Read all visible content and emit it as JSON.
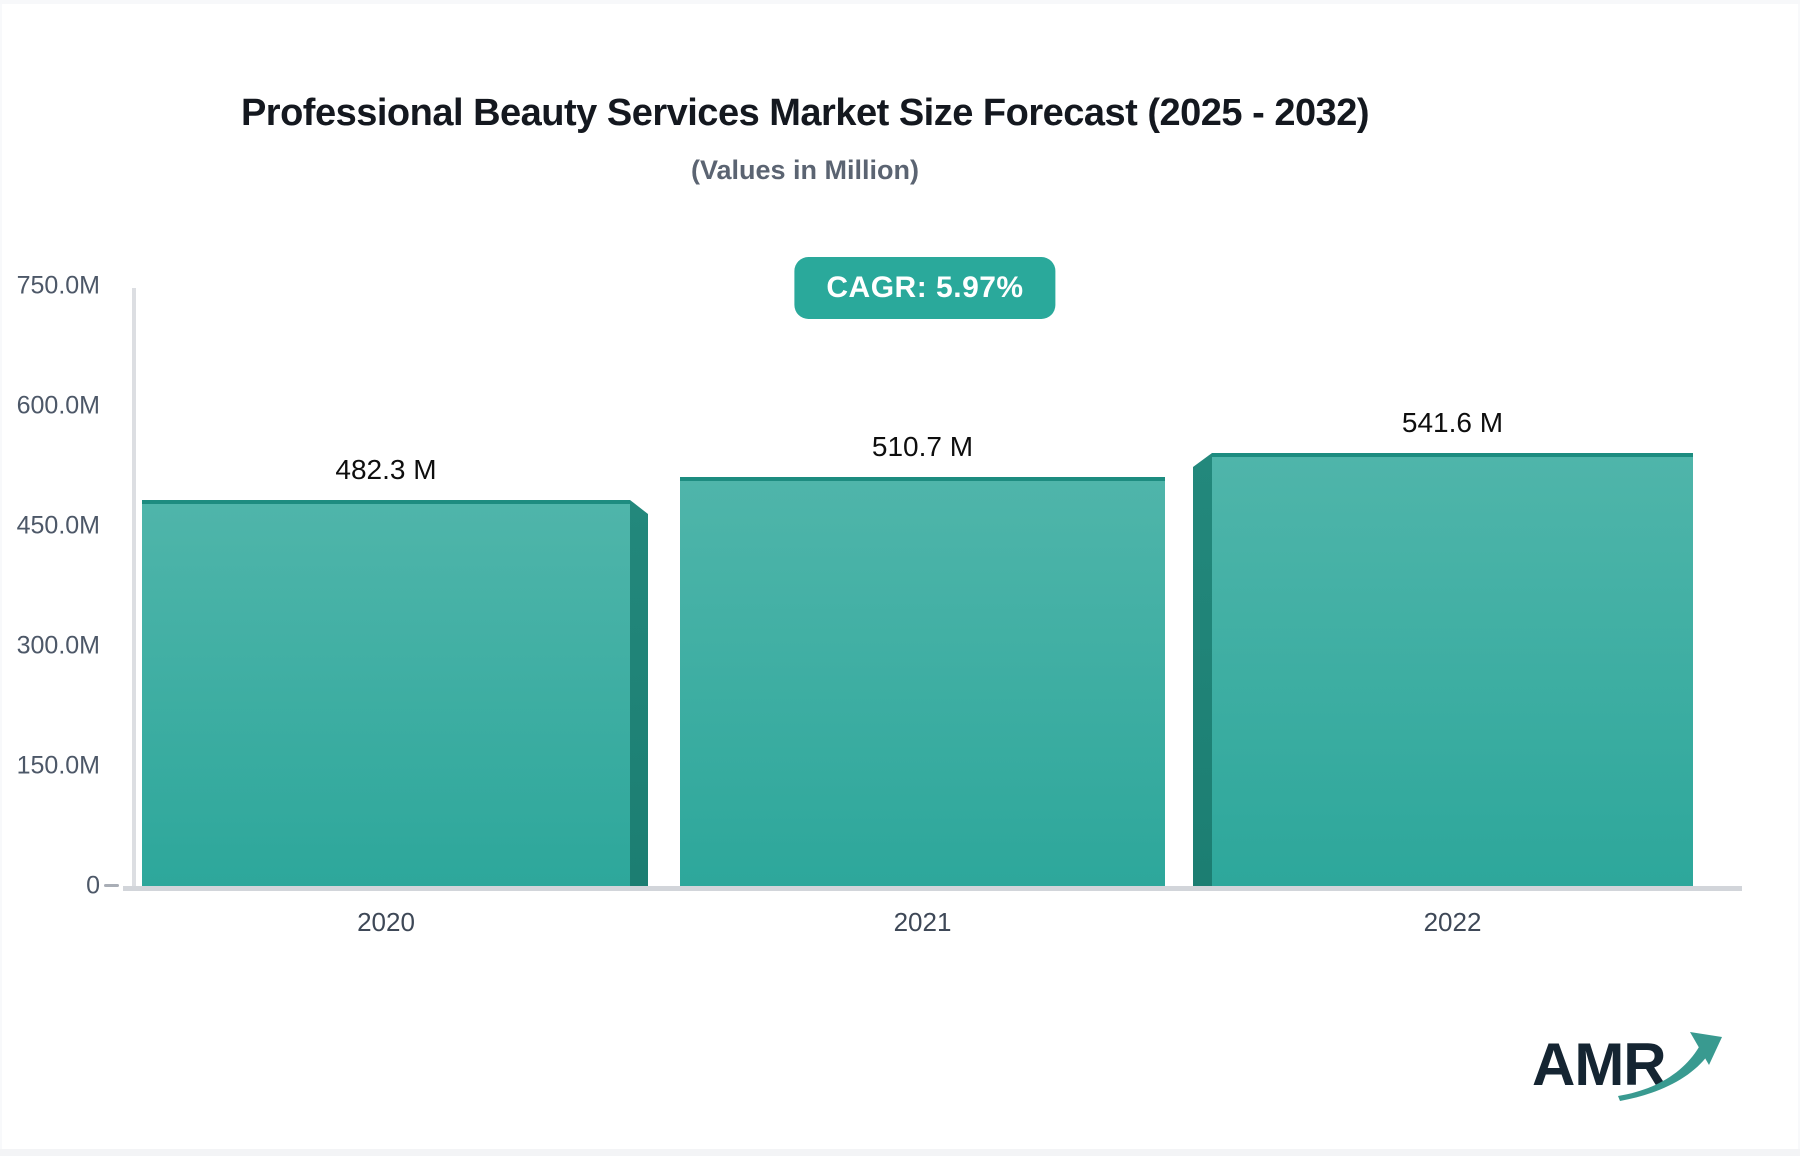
{
  "header": {
    "title": "Professional Beauty Services Market Size Forecast (2025 - 2032)",
    "subtitle": "(Values in Million)"
  },
  "cagr_badge": {
    "label": "CAGR: 5.97%",
    "color": "#2aa99b",
    "text_color": "#ffffff"
  },
  "chart_data": {
    "type": "bar",
    "title": "Professional Beauty Services Market Size Forecast (2025 - 2032)",
    "subtitle": "(Values in Million)",
    "unit": "Million",
    "cagr": "5.97%",
    "categories": [
      "2020",
      "2021",
      "2022"
    ],
    "values": [
      482.3,
      510.7,
      541.6
    ],
    "value_labels": [
      "482.3 M",
      "510.7 M",
      "541.6 M"
    ],
    "y_ticks": [
      750,
      600,
      450,
      300,
      150,
      0
    ],
    "y_tick_labels": [
      "750.0M",
      "600.0M",
      "450.0M",
      "300.0M",
      "150.0M",
      "0"
    ],
    "ylim": [
      0,
      750
    ],
    "grid": false,
    "legend": "none",
    "bar_color_top": "#4fb5aa",
    "bar_color_bottom": "#2da79b",
    "bar_edge_color": "#1d8c80",
    "bar_side_color_top": "#23887c",
    "bar_side_color_bottom": "#1c7e72"
  },
  "footer": {
    "logo_text": "AMR",
    "logo_arrow_color": "#399a90"
  }
}
